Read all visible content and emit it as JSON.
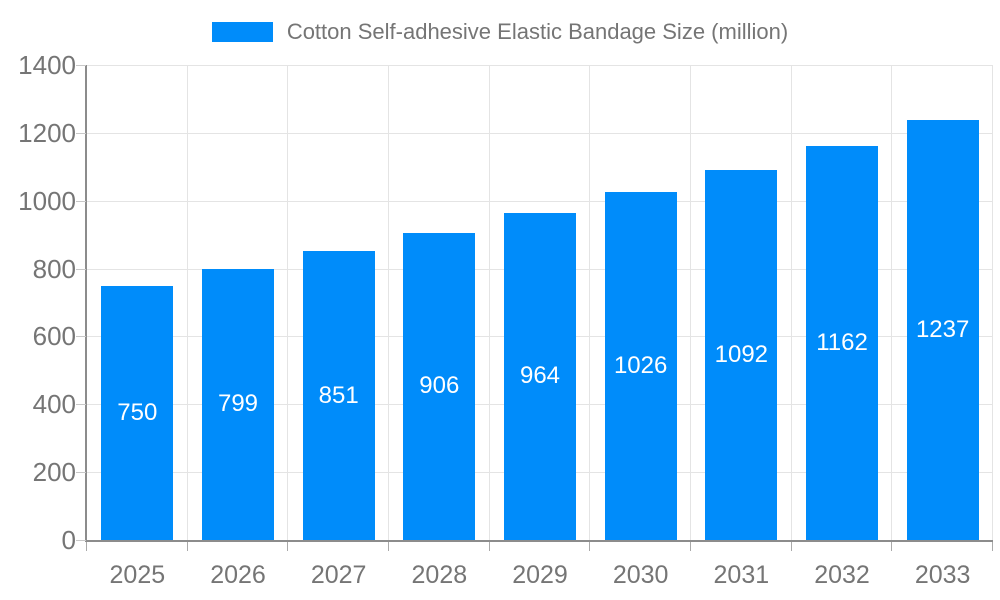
{
  "chart_data": {
    "type": "bar",
    "title": "Cotton Self-adhesive Elastic Bandage Size (million)",
    "categories": [
      "2025",
      "2026",
      "2027",
      "2028",
      "2029",
      "2030",
      "2031",
      "2032",
      "2033"
    ],
    "values": [
      750,
      799,
      851,
      906,
      964,
      1026,
      1092,
      1162,
      1237
    ],
    "xlabel": "",
    "ylabel": "",
    "ylim": [
      0,
      1400
    ],
    "yticks": [
      0,
      200,
      400,
      600,
      800,
      1000,
      1200,
      1400
    ],
    "grid": "both",
    "legend_position": "top-center",
    "value_labels": "inside-center",
    "colors": {
      "bar": "#008CFA",
      "grid": "#e4e4e4",
      "axis": "#8c8c8c",
      "tick_label": "#757575",
      "value_label": "#ffffff"
    }
  }
}
